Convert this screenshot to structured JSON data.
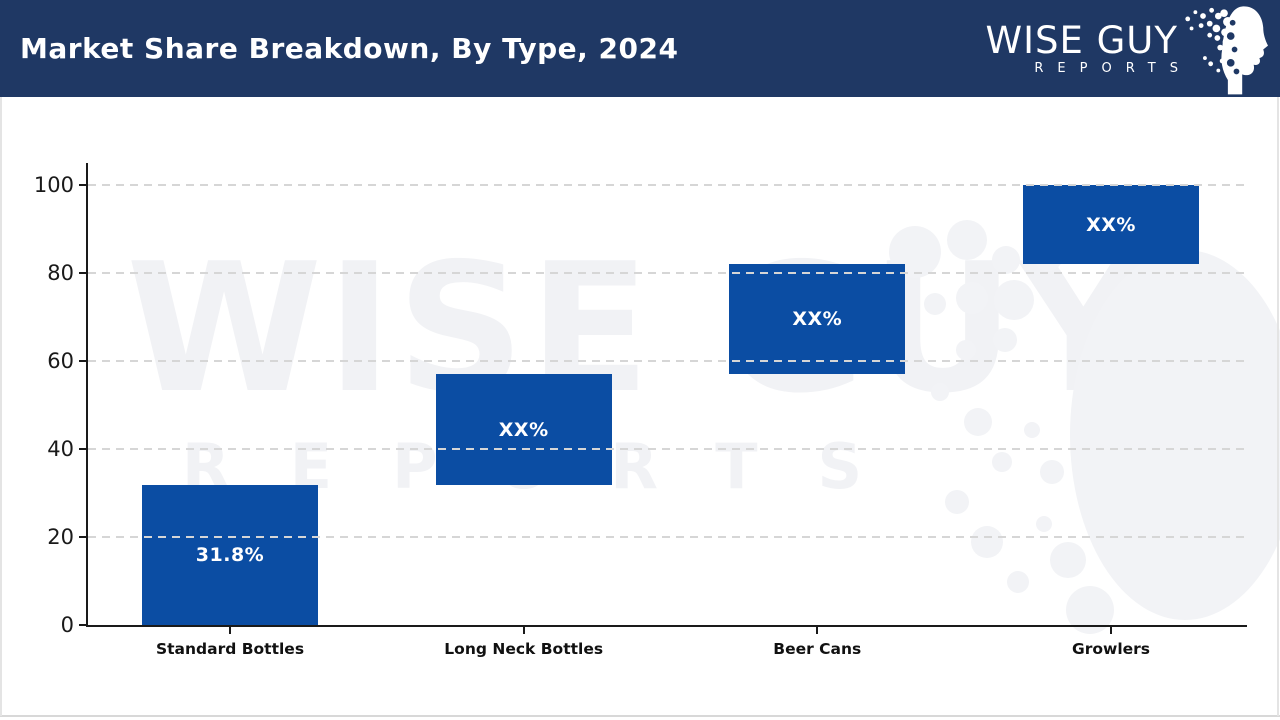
{
  "header": {
    "title": "Market Share Breakdown, By Type, 2024",
    "logo": {
      "line1": "WISE GUY",
      "line2": "REPORTS"
    }
  },
  "watermark": {
    "line1": "WISE GUY",
    "line2": "REPORTS"
  },
  "colors": {
    "header_bg": "#1F3864",
    "bar": "#0B4DA3",
    "bar_label": "#FFFFFF",
    "grid": "#D6D6D6",
    "axis": "#1A1A1A",
    "watermark": "#F1F2F5"
  },
  "chart_data": {
    "type": "bar",
    "subtype": "waterfall",
    "title": "Market Share Breakdown, By Type, 2024",
    "categories": [
      "Standard Bottles",
      "Long Neck Bottles",
      "Beer Cans",
      "Growlers"
    ],
    "bars": [
      {
        "category": "Standard Bottles",
        "start": 0,
        "end": 31.8,
        "label": "31.8%"
      },
      {
        "category": "Long Neck Bottles",
        "start": 31.8,
        "end": 57,
        "label": "XX%"
      },
      {
        "category": "Beer Cans",
        "start": 57,
        "end": 82,
        "label": "XX%"
      },
      {
        "category": "Growlers",
        "start": 82,
        "end": 100,
        "label": "XX%"
      }
    ],
    "xlabel": "",
    "ylabel": "",
    "yticks": [
      0,
      20,
      40,
      60,
      80,
      100
    ],
    "ylim": [
      0,
      105
    ],
    "grid": "horizontal-dashed",
    "legend": "none"
  }
}
